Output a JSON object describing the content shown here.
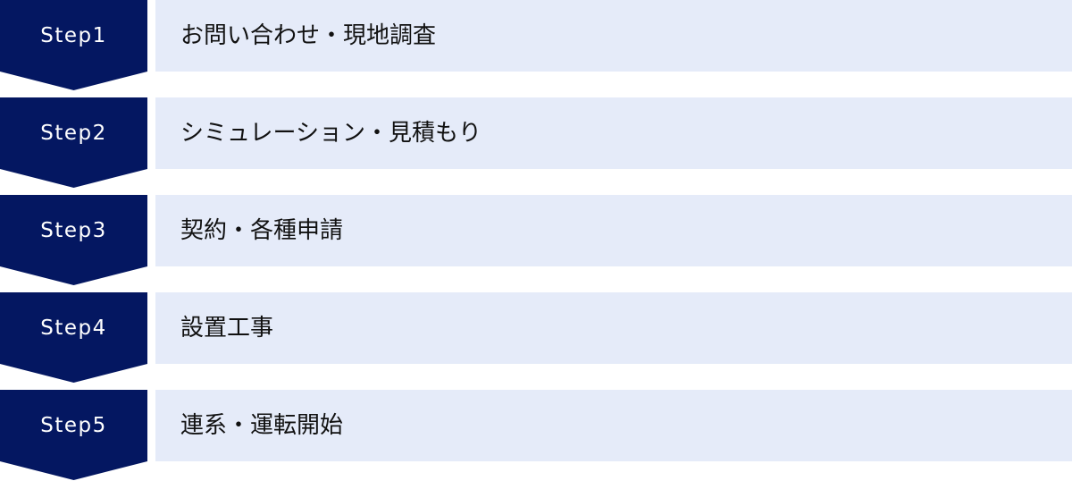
{
  "colors": {
    "step_bg": "#041761",
    "label_bg": "#e5ebf9"
  },
  "steps": [
    {
      "label": "Step1",
      "title": "お問い合わせ・現地調査"
    },
    {
      "label": "Step2",
      "title": "シミュレーション・見積もり"
    },
    {
      "label": "Step3",
      "title": "契約・各種申請"
    },
    {
      "label": "Step4",
      "title": "設置工事"
    },
    {
      "label": "Step5",
      "title": "連系・運転開始"
    }
  ]
}
